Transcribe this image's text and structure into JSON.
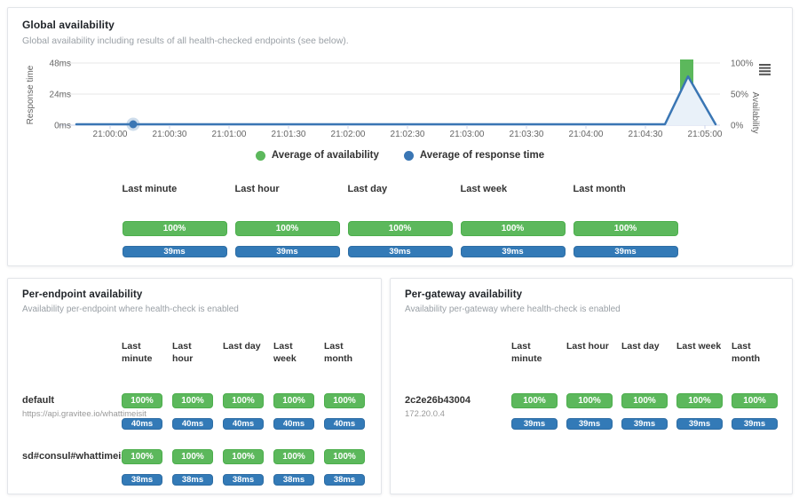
{
  "colors": {
    "availability_green": "#5cb85c",
    "availability_green_border": "#4cae4c",
    "response_blue": "#337ab7",
    "response_blue_border": "#2e6da4",
    "chart_line_blue": "#3a76b4",
    "chart_area_fill": "#e9f1f9",
    "gridline": "#e7e7e7",
    "axis_line": "#ccd6eb",
    "tick_text": "#666666"
  },
  "global": {
    "title": "Global availability",
    "subtitle": "Global availability including results of all health-checked endpoints (see below).",
    "legend": [
      {
        "label": "Average of availability",
        "color": "#5cb85c"
      },
      {
        "label": "Average of response time",
        "color": "#3a76b4"
      }
    ],
    "stats": {
      "columns": [
        {
          "label": "Last minute",
          "availability": "100%",
          "response_time": "39ms"
        },
        {
          "label": "Last hour",
          "availability": "100%",
          "response_time": "39ms"
        },
        {
          "label": "Last day",
          "availability": "100%",
          "response_time": "39ms"
        },
        {
          "label": "Last week",
          "availability": "100%",
          "response_time": "39ms"
        },
        {
          "label": "Last month",
          "availability": "100%",
          "response_time": "39ms"
        }
      ]
    }
  },
  "chart_data": {
    "type": "line+column",
    "x_ticks": [
      "21:00:00",
      "21:00:30",
      "21:01:00",
      "21:01:30",
      "21:02:00",
      "21:02:30",
      "21:03:00",
      "21:03:30",
      "21:04:00",
      "21:04:30",
      "21:05:00"
    ],
    "y_left": {
      "title": "Response time",
      "ticks": [
        "0ms",
        "24ms",
        "48ms"
      ],
      "range": [
        0,
        48
      ]
    },
    "y_right": {
      "title": "Availability",
      "ticks": [
        "0%",
        "50%",
        "100%"
      ],
      "range": [
        0,
        100
      ]
    },
    "series": [
      {
        "name": "Average of availability",
        "type": "column",
        "y_axis": "right",
        "color": "#5cb85c",
        "points": [
          {
            "x": "21:04:50",
            "y": 100
          }
        ]
      },
      {
        "name": "Average of response time",
        "type": "area-line",
        "y_axis": "left",
        "color": "#3a76b4",
        "points": [
          {
            "x": "20:59:45",
            "y": 0
          },
          {
            "x": "21:00:12",
            "y": 0,
            "marker": true
          },
          {
            "x": "21:04:40",
            "y": 0
          },
          {
            "x": "21:04:50",
            "y": 39
          },
          {
            "x": "21:05:05",
            "y": 0
          }
        ]
      }
    ],
    "legend_position": "bottom"
  },
  "endpoint_panel": {
    "title": "Per-endpoint availability",
    "subtitle": "Availability per-endpoint where health-check is enabled",
    "headers": [
      "Last minute",
      "Last hour",
      "Last day",
      "Last week",
      "Last month"
    ],
    "rows": [
      {
        "name": "default",
        "sub": "https://api.gravitee.io/whattimeisit",
        "availability": [
          "100%",
          "100%",
          "100%",
          "100%",
          "100%"
        ],
        "response_times": [
          "40ms",
          "40ms",
          "40ms",
          "40ms",
          "40ms"
        ]
      },
      {
        "name": "sd#consul#whattimeisit",
        "sub": "",
        "availability": [
          "100%",
          "100%",
          "100%",
          "100%",
          "100%"
        ],
        "response_times": [
          "38ms",
          "38ms",
          "38ms",
          "38ms",
          "38ms"
        ]
      }
    ]
  },
  "gateway_panel": {
    "title": "Per-gateway availability",
    "subtitle": "Availability per-gateway where health-check is enabled",
    "headers": [
      "Last minute",
      "Last hour",
      "Last day",
      "Last week",
      "Last month"
    ],
    "rows": [
      {
        "name": "2c2e26b43004",
        "sub": "172.20.0.4",
        "availability": [
          "100%",
          "100%",
          "100%",
          "100%",
          "100%"
        ],
        "response_times": [
          "39ms",
          "39ms",
          "39ms",
          "39ms",
          "39ms"
        ]
      }
    ]
  }
}
